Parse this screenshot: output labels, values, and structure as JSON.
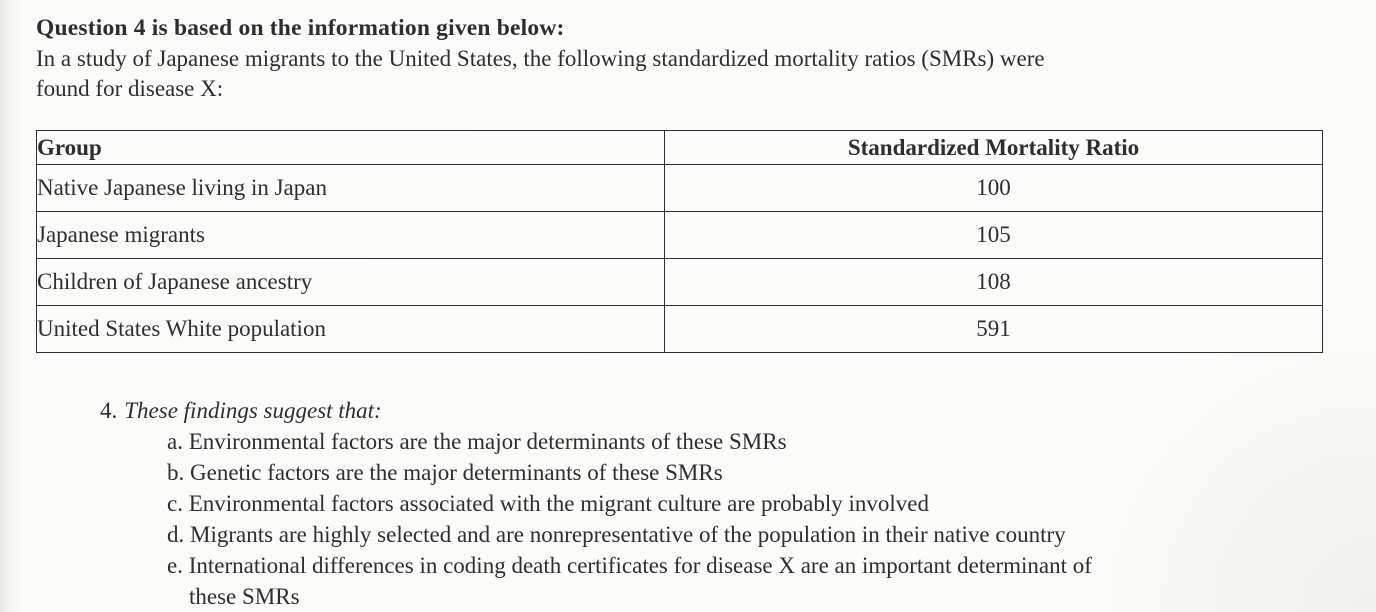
{
  "page": {
    "heading": "Question 4 is based on the information given below:",
    "intro_lines": [
      "In a study of Japanese migrants to the United States, the following standardized mortality ratios (SMRs) were",
      "found for disease X:"
    ]
  },
  "table": {
    "headers": [
      "Group",
      "Standardized Mortality Ratio"
    ],
    "rows": [
      {
        "group": "Native Japanese living in Japan",
        "smr": "100"
      },
      {
        "group": "Japanese migrants",
        "smr": "105"
      },
      {
        "group": "Children of Japanese ancestry",
        "smr": "108"
      },
      {
        "group": "United States White population",
        "smr": "591"
      }
    ]
  },
  "question": {
    "number": "4.",
    "stem": "These findings suggest that:",
    "options": [
      {
        "lines": [
          "a. Environmental factors are the major determinants of these SMRs"
        ]
      },
      {
        "lines": [
          "b. Genetic factors are the major determinants of these SMRs"
        ]
      },
      {
        "lines": [
          "c. Environmental factors associated with the migrant culture are probably involved"
        ]
      },
      {
        "lines": [
          "d. Migrants are highly selected and are nonrepresentative of the population in their native country"
        ]
      },
      {
        "lines": [
          "e. International differences in coding death certificates for disease X are an important determinant of",
          "these SMRs"
        ]
      }
    ]
  },
  "colors": {
    "text": "#2e2e2e",
    "table_border": "#2f2f2f",
    "background": "#fbfbf9"
  }
}
